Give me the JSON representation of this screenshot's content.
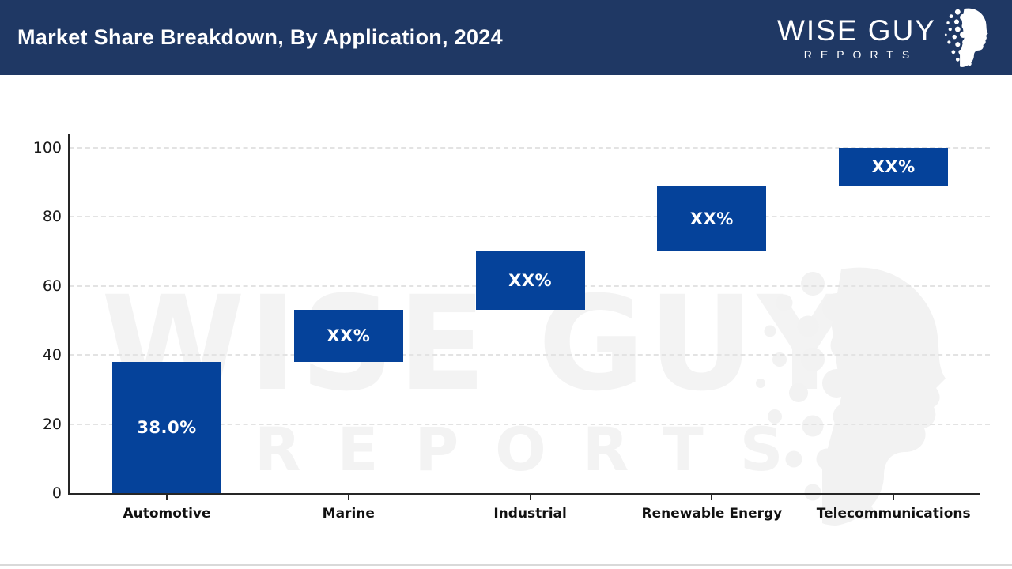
{
  "header": {
    "title": "Market Share Breakdown, By Application, 2024",
    "background_color": "#1f3864",
    "logo": {
      "line1": "WISE GUY",
      "line2": "REPORTS"
    }
  },
  "watermark": {
    "line1": "WISE GUY",
    "line2": "REPORTS"
  },
  "chart_data": {
    "type": "bar",
    "subtype": "waterfall",
    "title": "Market Share Breakdown, By Application, 2024",
    "categories": [
      "Automotive",
      "Marine",
      "Industrial",
      "Renewable Energy",
      "Telecommunications"
    ],
    "bars": [
      {
        "category": "Automotive",
        "start": 0,
        "end": 38,
        "value": 38,
        "label": "38.0%"
      },
      {
        "category": "Marine",
        "start": 38,
        "end": 53,
        "value": 15,
        "label": "XX%"
      },
      {
        "category": "Industrial",
        "start": 53,
        "end": 70,
        "value": 17,
        "label": "XX%"
      },
      {
        "category": "Renewable Energy",
        "start": 70,
        "end": 89,
        "value": 19,
        "label": "XX%"
      },
      {
        "category": "Telecommunications",
        "start": 89,
        "end": 100,
        "value": 11,
        "label": "XX%"
      }
    ],
    "xlabel": "",
    "ylabel": "",
    "ylim": [
      0,
      100
    ],
    "yticks": [
      0,
      20,
      40,
      60,
      80,
      100
    ],
    "grid": "horizontal-dashed",
    "legend": "none",
    "bar_color": "#05429a",
    "bar_label_color": "#ffffff",
    "axis_color": "#262626",
    "gridline_color": "#e3e3e3"
  }
}
